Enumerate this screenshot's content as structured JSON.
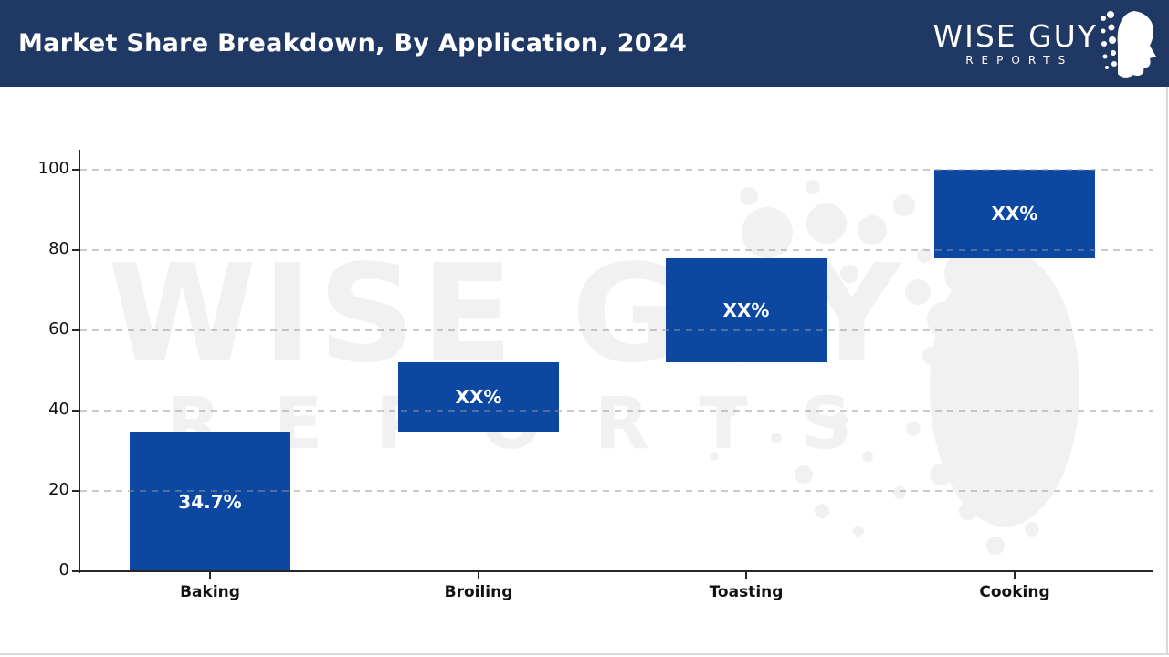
{
  "header": {
    "title": "Market Share Breakdown, By Application, 2024",
    "logo": {
      "wordmark": "WISE GUY",
      "subtext": "REPORTS"
    }
  },
  "watermark": {
    "line1": "WISE GUY",
    "line2": "REPORTS"
  },
  "chart_data": {
    "type": "bar",
    "variant": "waterfall",
    "title": "Market Share Breakdown, By Application, 2024",
    "categories": [
      "Baking",
      "Broiling",
      "Toasting",
      "Cooking"
    ],
    "segments": [
      {
        "category": "Baking",
        "start": 0,
        "end": 34.7,
        "label": "34.7%"
      },
      {
        "category": "Broiling",
        "start": 34.7,
        "end": 52,
        "label": "XX%"
      },
      {
        "category": "Toasting",
        "start": 52,
        "end": 78,
        "label": "XX%"
      },
      {
        "category": "Cooking",
        "start": 78,
        "end": 100,
        "label": "XX%"
      }
    ],
    "ylim": [
      0,
      100
    ],
    "yticks": [
      0,
      20,
      40,
      60,
      80,
      100
    ],
    "xlabel": "",
    "ylabel": "",
    "legend": "none",
    "grid": "horizontal-dashed-over-bars"
  },
  "colors": {
    "header_bg": "#1f3864",
    "bar": "#0c48a2",
    "bar_label": "#ffffff",
    "watermark": "#f1f1f2",
    "axis": "#262626",
    "gridline": "#cfcfcf"
  }
}
